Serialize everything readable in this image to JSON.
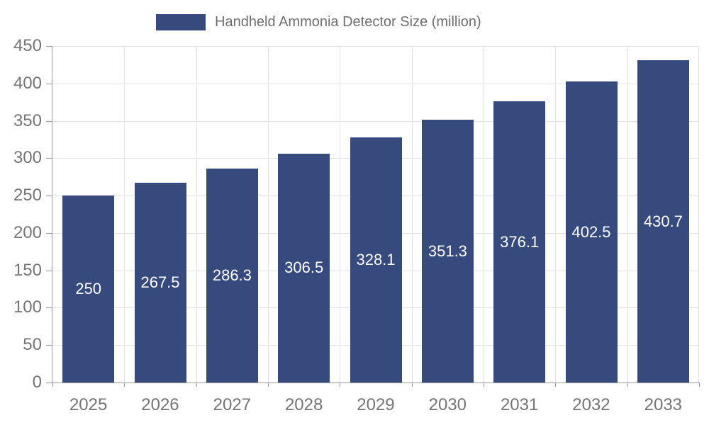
{
  "chart_data": {
    "type": "bar",
    "categories": [
      "2025",
      "2026",
      "2027",
      "2028",
      "2029",
      "2030",
      "2031",
      "2032",
      "2033"
    ],
    "values": [
      250,
      267.5,
      286.3,
      306.5,
      328.1,
      351.3,
      376.1,
      402.5,
      430.7
    ],
    "value_labels": [
      "250",
      "267.5",
      "286.3",
      "306.5",
      "328.1",
      "351.3",
      "376.1",
      "402.5",
      "430.7"
    ],
    "title": "",
    "xlabel": "",
    "ylabel": "",
    "ylim": [
      0,
      450
    ],
    "yticks": [
      0,
      50,
      100,
      150,
      200,
      250,
      300,
      350,
      400,
      450
    ],
    "grid": true,
    "legend_position": "top-center",
    "legend": "Handheld Ammonia Detector Size (million)"
  },
  "legend": {
    "label": "Handheld Ammonia Detector Size (million)"
  },
  "colors": {
    "bar": "#374a7e",
    "axis": "#999999",
    "grid": "#e3e3e3",
    "tick_label": "#757575",
    "legend_text": "#6e6e6e",
    "value_label": "#ffffff",
    "background": "#ffffff"
  }
}
